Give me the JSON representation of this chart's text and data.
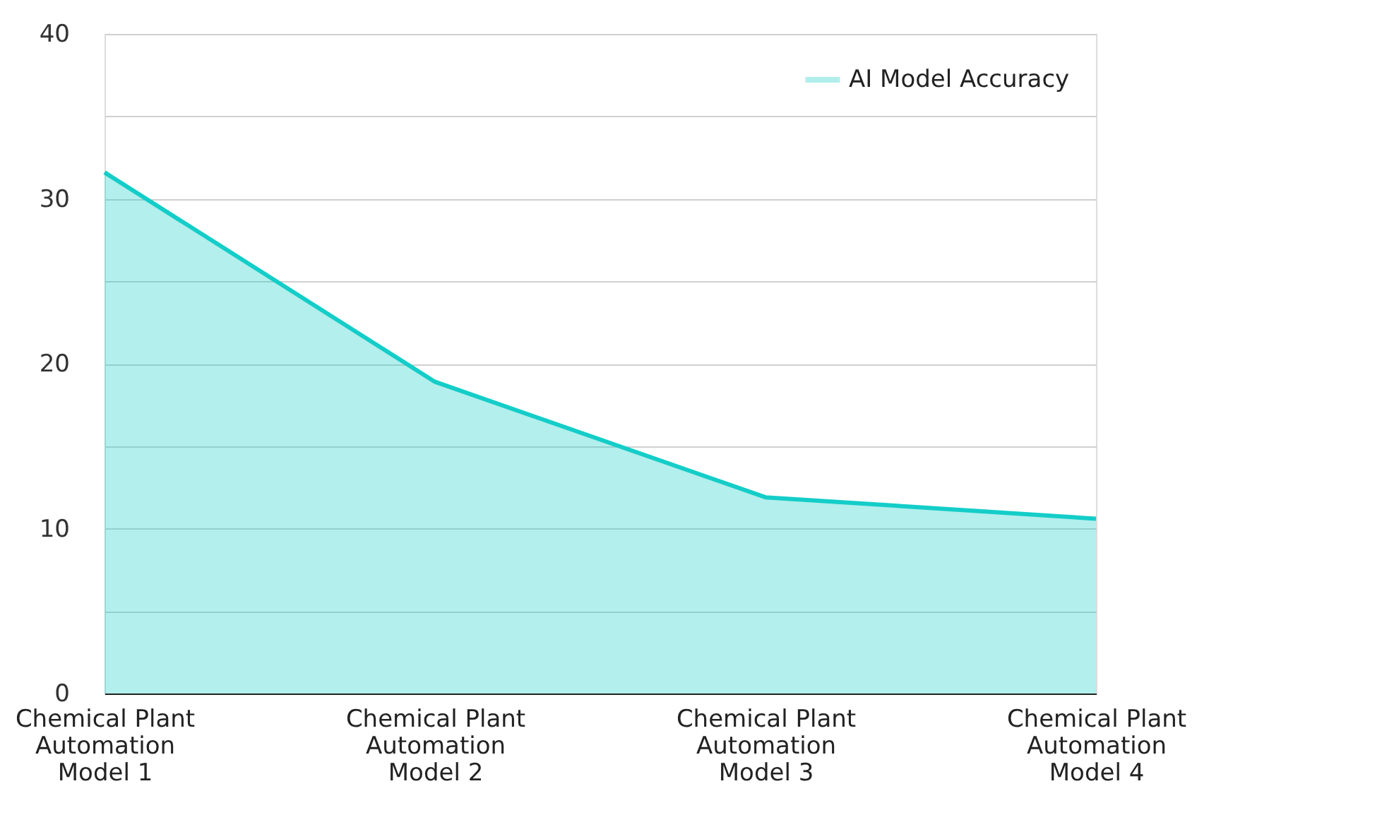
{
  "chart_data": {
    "type": "area",
    "categories": [
      "Chemical Plant Automation Model 1",
      "Chemical Plant Automation Model 2",
      "Chemical Plant Automation Model 3",
      "Chemical Plant Automation Model 4"
    ],
    "series": [
      {
        "name": "AI Model Accuracy",
        "color": "#14cdc8",
        "values": [
          31.6,
          18.9,
          11.9,
          10.6
        ]
      }
    ],
    "ylim": [
      0,
      40
    ],
    "yticks": [
      0,
      {
        "value": 5,
        "label": null
      },
      10,
      {
        "value": 15,
        "label": null
      },
      20,
      {
        "value": 25,
        "label": null
      },
      30,
      {
        "value": 35,
        "label": null
      },
      40
    ],
    "grid": "y",
    "legend": "top right"
  }
}
